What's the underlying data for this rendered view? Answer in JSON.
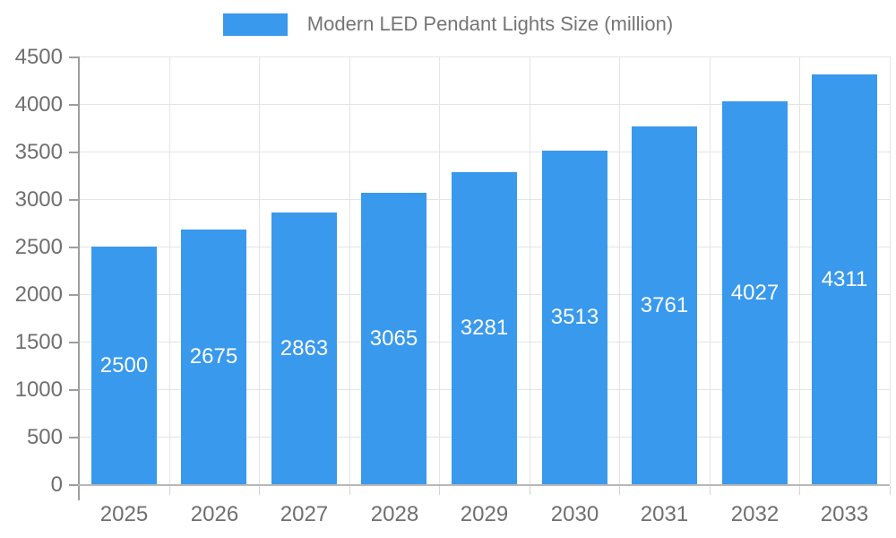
{
  "legend": {
    "label": "Modern LED Pendant Lights Size (million)"
  },
  "colors": {
    "bar": "#3999EC",
    "bar_label": "#FFFFFF",
    "grid": "#E4E4E4",
    "axis_y": "#9E9E9E",
    "axis_x": "#B8B8B8",
    "boundary_tick": "#D4D4D4",
    "axis_text": "#6F6F6F",
    "legend_text": "#757575"
  },
  "chart_data": {
    "type": "bar",
    "title": "Modern LED Pendant Lights Size (million)",
    "categories": [
      "2025",
      "2026",
      "2027",
      "2028",
      "2029",
      "2030",
      "2031",
      "2032",
      "2033"
    ],
    "values": [
      2500,
      2675,
      2863,
      3065,
      3281,
      3513,
      3761,
      4027,
      4311
    ],
    "xlabel": "",
    "ylabel": "",
    "ylim": [
      0,
      4500
    ],
    "yticks": [
      0,
      500,
      1000,
      1500,
      2000,
      2500,
      3000,
      3500,
      4000,
      4500
    ],
    "grid": true,
    "legend_position": "top",
    "value_labels": "inside-center"
  }
}
